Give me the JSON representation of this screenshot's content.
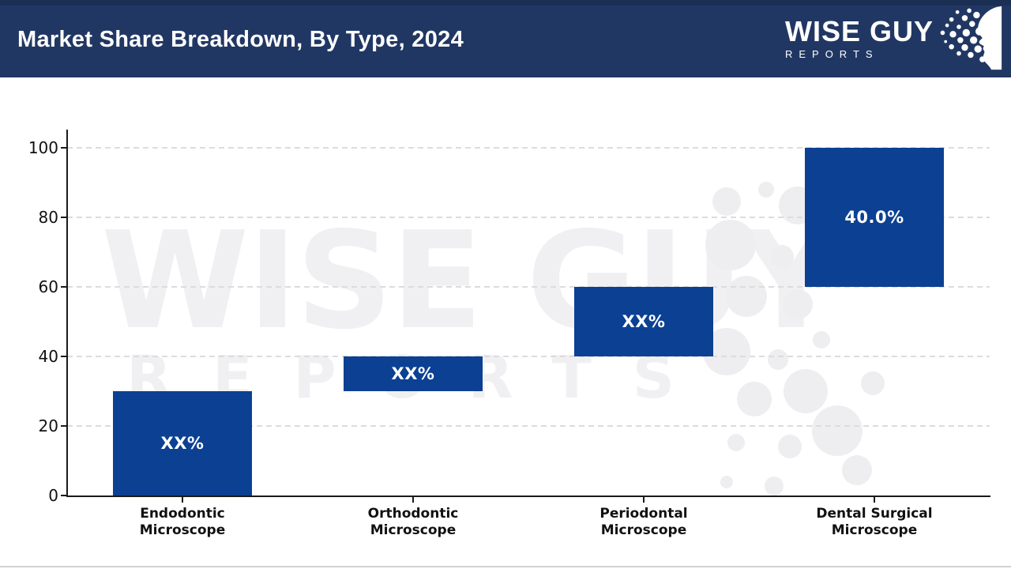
{
  "header": {
    "title": "Market Share Breakdown, By Type, 2024",
    "logo": {
      "name_top": "WISE GUY",
      "name_bottom": "REPORTS",
      "face_icon": "dotted-face-profile"
    }
  },
  "watermark": {
    "line1": "WISE GUY",
    "line2": "REPORTS"
  },
  "colors": {
    "header_bg": "#213763",
    "header_top_strip": "#1b2e54",
    "bar_fill": "#0b4093",
    "bar_label_text": "#ffffff",
    "grid_line": "#dcdcdc",
    "axis_line": "#1a1a1a",
    "watermark_gray": "#f0f0f3",
    "bottom_rule": "#d1d1d1"
  },
  "chart_data": {
    "type": "bar",
    "subtype": "waterfall",
    "title": "Market Share Breakdown, By Type, 2024",
    "xlabel": "",
    "ylabel": "",
    "ylim": [
      0,
      105
    ],
    "yticks": [
      0,
      20,
      40,
      60,
      80,
      100
    ],
    "grid": "horizontal-dashed",
    "legend": "none",
    "categories": [
      [
        "Endodontic",
        "Microscope"
      ],
      [
        "Orthodontic",
        "Microscope"
      ],
      [
        "Periodontal",
        "Microscope"
      ],
      [
        "Dental Surgical",
        "Microscope"
      ]
    ],
    "segments": [
      {
        "category": "Endodontic Microscope",
        "start": 0,
        "end": 30,
        "value": 30,
        "label": "XX%"
      },
      {
        "category": "Orthodontic Microscope",
        "start": 30,
        "end": 40,
        "value": 10,
        "label": "XX%"
      },
      {
        "category": "Periodontal Microscope",
        "start": 40,
        "end": 60,
        "value": 20,
        "label": "XX%"
      },
      {
        "category": "Dental Surgical Microscope",
        "start": 60,
        "end": 100,
        "value": 40,
        "label": "40.0%"
      }
    ]
  }
}
